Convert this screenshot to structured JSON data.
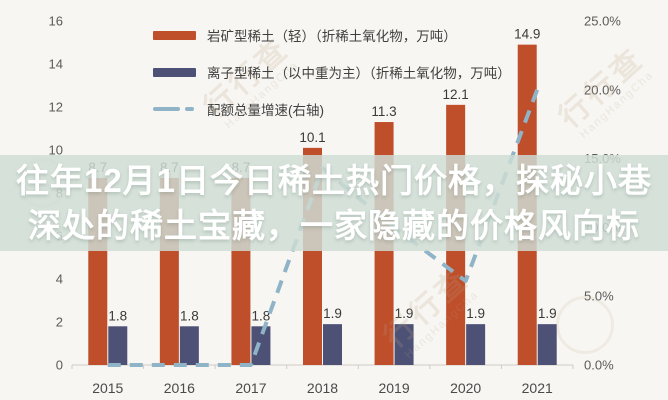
{
  "overlay": {
    "line1": "往年12月1日今日稀土热门价格，探秘小巷",
    "line2": "深处的稀土宝藏，一家隐藏的价格风向标"
  },
  "watermark": {
    "text": "行行查",
    "latin": "HangHangCha"
  },
  "colors": {
    "background": "#f8f6f2",
    "rock_bar": "#bf4e2b",
    "ionic_bar": "#4d5175",
    "growth_line": "#8fb3c7",
    "banner_bg": "rgba(206,221,212,0.84)",
    "axis_line": "#cfccc6"
  },
  "chart_data": {
    "type": "bar",
    "categories": [
      "2015",
      "2016",
      "2017",
      "2018",
      "2019",
      "2020",
      "2021"
    ],
    "series": [
      {
        "name": "岩矿型稀土（轻）（折稀土氧化物，万吨）",
        "type": "bar",
        "axis": "left",
        "color": "#bf4e2b",
        "values": [
          8.7,
          8.7,
          8.7,
          10.1,
          11.3,
          12.1,
          14.9
        ]
      },
      {
        "name": "离子型稀土（以中重为主）（折稀土氧化物，万吨）",
        "type": "bar",
        "axis": "left",
        "color": "#4d5175",
        "values": [
          1.8,
          1.8,
          1.8,
          1.9,
          1.9,
          1.9,
          1.9
        ]
      },
      {
        "name": "配额总量增速(右轴)",
        "type": "line",
        "axis": "right",
        "color": "#8fb3c7",
        "dashed": true,
        "values": [
          0.0,
          0.0,
          0.0,
          14.3,
          10.0,
          6.1,
          20.0
        ]
      }
    ],
    "left_axis": {
      "min": 0,
      "max": 16,
      "ticks": [
        0,
        2,
        4,
        6,
        8,
        10,
        12,
        14,
        16
      ]
    },
    "right_axis": {
      "min": 0,
      "max": 25,
      "ticks": [
        {
          "label": "0.0%",
          "value": 0
        },
        {
          "label": "5.0%",
          "value": 5
        },
        {
          "label": "10.0%",
          "value": 10
        },
        {
          "label": "15.0%",
          "value": 15
        },
        {
          "label": "20.0%",
          "value": 20
        },
        {
          "label": "25.0%",
          "value": 25
        }
      ]
    },
    "grid": false,
    "legend_position": "top-left-inside",
    "title": ""
  }
}
